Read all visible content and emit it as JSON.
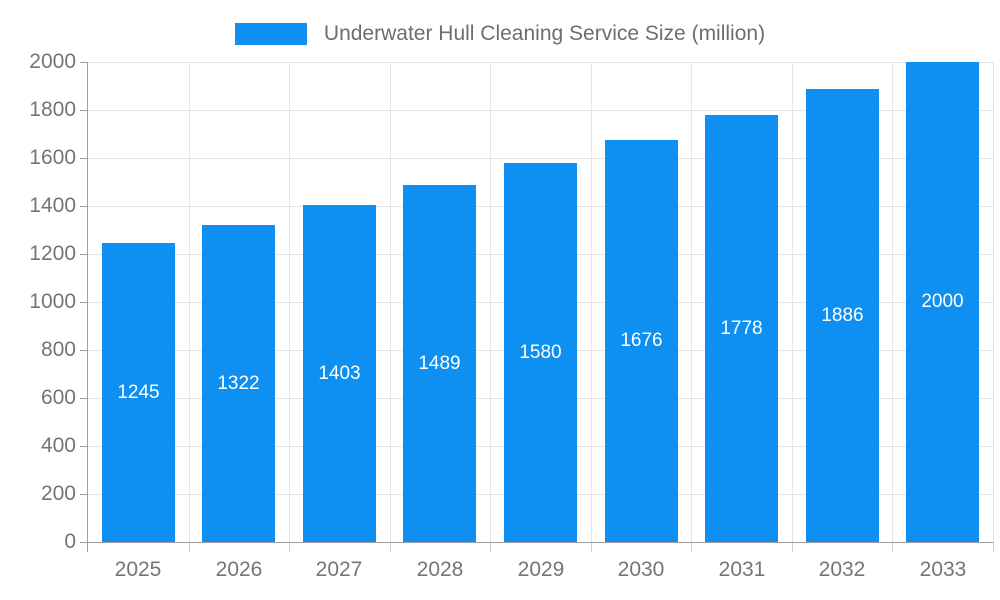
{
  "chart_data": {
    "type": "bar",
    "title": "Underwater Hull Cleaning Service Size (million)",
    "categories": [
      "2025",
      "2026",
      "2027",
      "2028",
      "2029",
      "2030",
      "2031",
      "2032",
      "2033"
    ],
    "values": [
      1245,
      1322,
      1403,
      1489,
      1580,
      1676,
      1778,
      1886,
      2000
    ],
    "xlabel": "",
    "ylabel": "",
    "ylim": [
      0,
      2000
    ],
    "ytick_step": 200,
    "grid": true,
    "legend_position": "top-center",
    "value_labels": "inside-center",
    "colors": {
      "bar": "#0d90f1",
      "grid": "#e5e5e5",
      "axis": "#9e9e9e",
      "x_tick": "#cfcfcf",
      "y_tick": "#9e9e9e",
      "tick_label": "#757575",
      "legend_text": "#6e6e6e",
      "value_label": "#ffffff",
      "background": "#ffffff"
    }
  }
}
